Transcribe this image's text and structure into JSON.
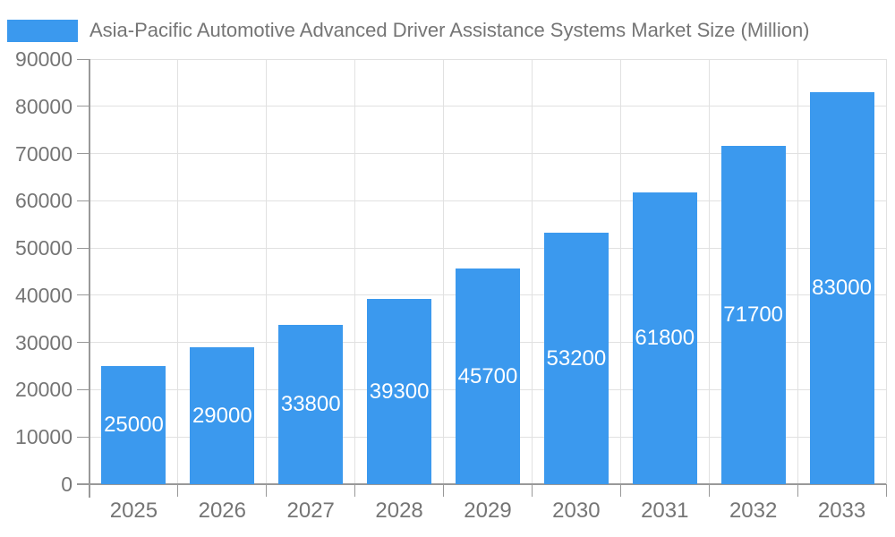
{
  "legend": {
    "label": "Asia-Pacific Automotive Advanced Driver Assistance Systems Market Size (Million)",
    "swatch_color": "#3B99EE"
  },
  "chart_data": {
    "type": "bar",
    "title": "Asia-Pacific Automotive Advanced Driver Assistance Systems Market Size (Million)",
    "categories": [
      "2025",
      "2026",
      "2027",
      "2028",
      "2029",
      "2030",
      "2031",
      "2032",
      "2033"
    ],
    "series": [
      {
        "name": "Asia-Pacific Automotive Advanced Driver Assistance Systems Market Size (Million)",
        "values": [
          25000,
          29000,
          33800,
          39300,
          45700,
          53200,
          61800,
          71700,
          83000
        ]
      }
    ],
    "xlabel": "",
    "ylabel": "",
    "ylim": [
      0,
      90000
    ],
    "yticks": [
      0,
      10000,
      20000,
      30000,
      40000,
      50000,
      60000,
      70000,
      80000,
      90000
    ],
    "grid": true,
    "legend_position": "top-left",
    "bar_color": "#3B99EE",
    "bar_label_color": "#FFFFFF",
    "axis_text_color": "#757575",
    "axis_line_color": "#999999",
    "grid_color": "#E1E1E1"
  }
}
